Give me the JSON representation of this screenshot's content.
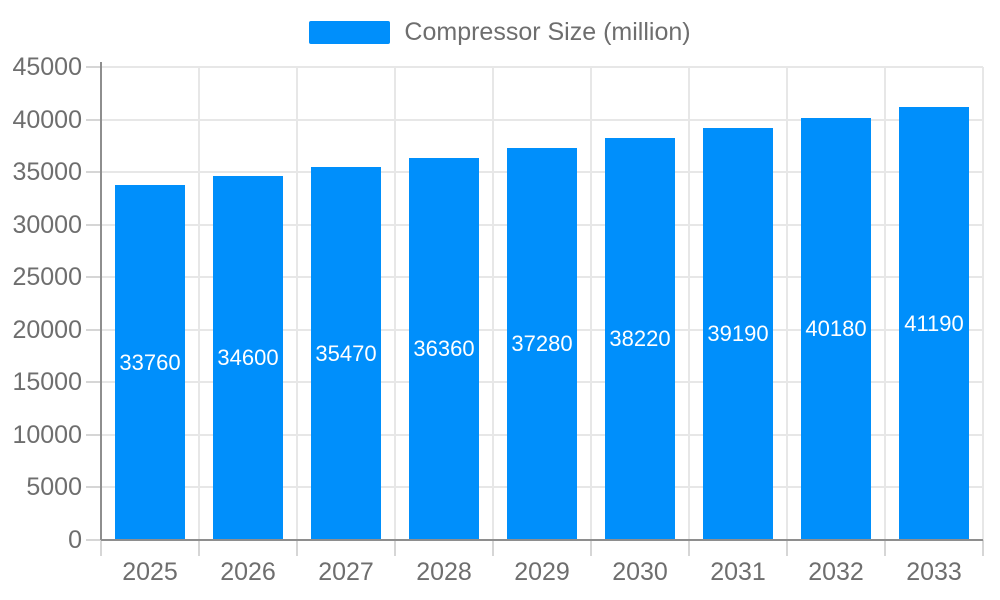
{
  "chart_data": {
    "type": "bar",
    "title": "",
    "legend": {
      "position": "top",
      "label": "Compressor Size (million)"
    },
    "categories": [
      "2025",
      "2026",
      "2027",
      "2028",
      "2029",
      "2030",
      "2031",
      "2032",
      "2033"
    ],
    "series": [
      {
        "name": "Compressor Size (million)",
        "values": [
          33760,
          34600,
          35470,
          36360,
          37280,
          38220,
          39190,
          40180,
          41190
        ]
      }
    ],
    "xlabel": "",
    "ylabel": "",
    "ylim": [
      0,
      45000
    ],
    "yticks": [
      0,
      5000,
      10000,
      15000,
      20000,
      25000,
      30000,
      35000,
      40000,
      45000
    ],
    "grid": true,
    "value_labels_shown": true,
    "colors": {
      "bar": "#008FFB",
      "axis_label_text": "#6e6e6e",
      "value_label_text": "#ffffff",
      "gridline": "#e7e7e7",
      "tick": "#d6d6d6",
      "axis_line": "#8e8e8e"
    }
  }
}
